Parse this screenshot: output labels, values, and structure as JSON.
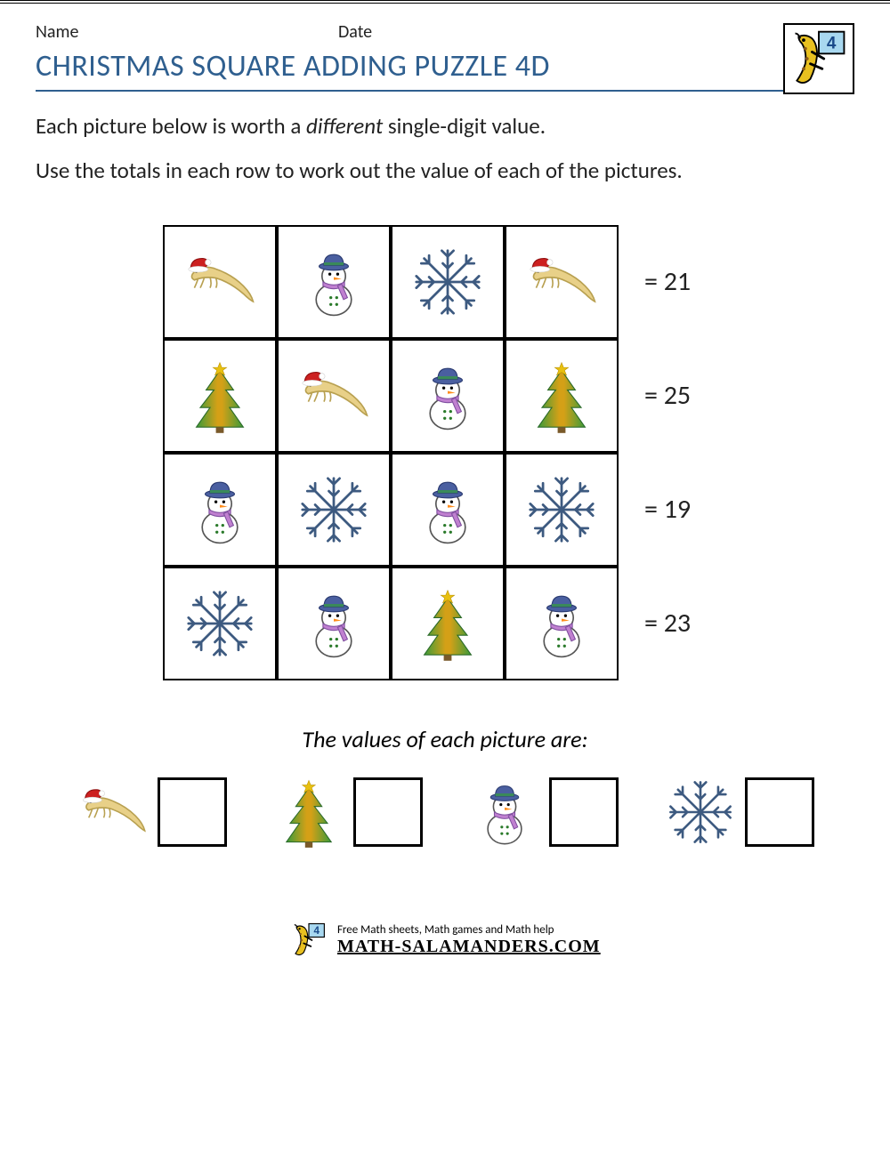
{
  "header": {
    "name_label": "Name",
    "date_label": "Date",
    "grade_badge": "4"
  },
  "title": "CHRISTMAS SQUARE ADDING PUZZLE 4D",
  "instructions": {
    "line1_pre": "Each picture below is worth a ",
    "line1_em": "different",
    "line1_post": " single-digit value.",
    "line2": "Use the totals in each row to work out the value of each of the pictures."
  },
  "puzzle": {
    "icons": {
      "salamander": "salamander",
      "snowman": "snowman",
      "snowflake": "snowflake",
      "tree": "tree"
    },
    "grid": [
      [
        "salamander",
        "snowman",
        "snowflake",
        "salamander"
      ],
      [
        "tree",
        "salamander",
        "snowman",
        "tree"
      ],
      [
        "snowman",
        "snowflake",
        "snowman",
        "snowflake"
      ],
      [
        "snowflake",
        "snowman",
        "tree",
        "snowman"
      ]
    ],
    "row_totals": [
      "= 21",
      "= 25",
      "= 19",
      "= 23"
    ],
    "colors": {
      "grid_border": "#000000",
      "snowflake": "#3d5a80",
      "snowman_body": "#ffffff",
      "snowman_outline": "#444444",
      "snowman_hat": "#4a5fa0",
      "snowman_scarf": "#c080d0",
      "snowman_nose": "#ff8c1a",
      "tree_green": "#3a9b3a",
      "tree_gradient_mid": "#d4a017",
      "tree_star": "#e8c010",
      "salamander_body": "#e8d088",
      "salamander_hat": "#cc2020"
    }
  },
  "answers": {
    "title": "The values of each picture are:",
    "items": [
      "salamander",
      "tree",
      "snowman",
      "snowflake"
    ]
  },
  "footer": {
    "tagline": "Free Math sheets, Math games and Math help",
    "brand": "MATH-SALAMANDERS.COM"
  }
}
